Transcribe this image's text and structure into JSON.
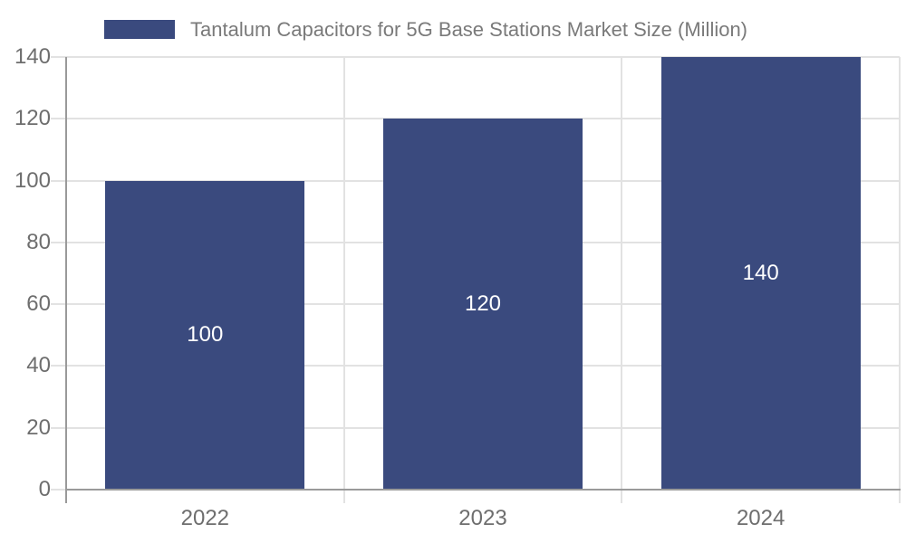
{
  "chart_data": {
    "type": "bar",
    "title": "Tantalum Capacitors for 5G Base Stations Market Size (Million)",
    "categories": [
      "2022",
      "2023",
      "2024"
    ],
    "values": [
      100,
      120,
      140
    ],
    "bar_value_labels": [
      "100",
      "120",
      "140"
    ],
    "xlabel": "",
    "ylabel": "",
    "ylim": [
      0,
      140
    ],
    "ytick_step": 20,
    "yticks": [
      0,
      20,
      40,
      60,
      80,
      100,
      120,
      140
    ],
    "grid": true,
    "legend_position": "top-left",
    "colors": {
      "bar": "#3A4A7E",
      "value_label": "#FFFFFF",
      "tick_label": "#6E6E6E",
      "legend_label": "#7A7A7A",
      "axis": "#9A9A9A",
      "grid": "#E2E2E2",
      "background": "#FFFFFF"
    }
  }
}
